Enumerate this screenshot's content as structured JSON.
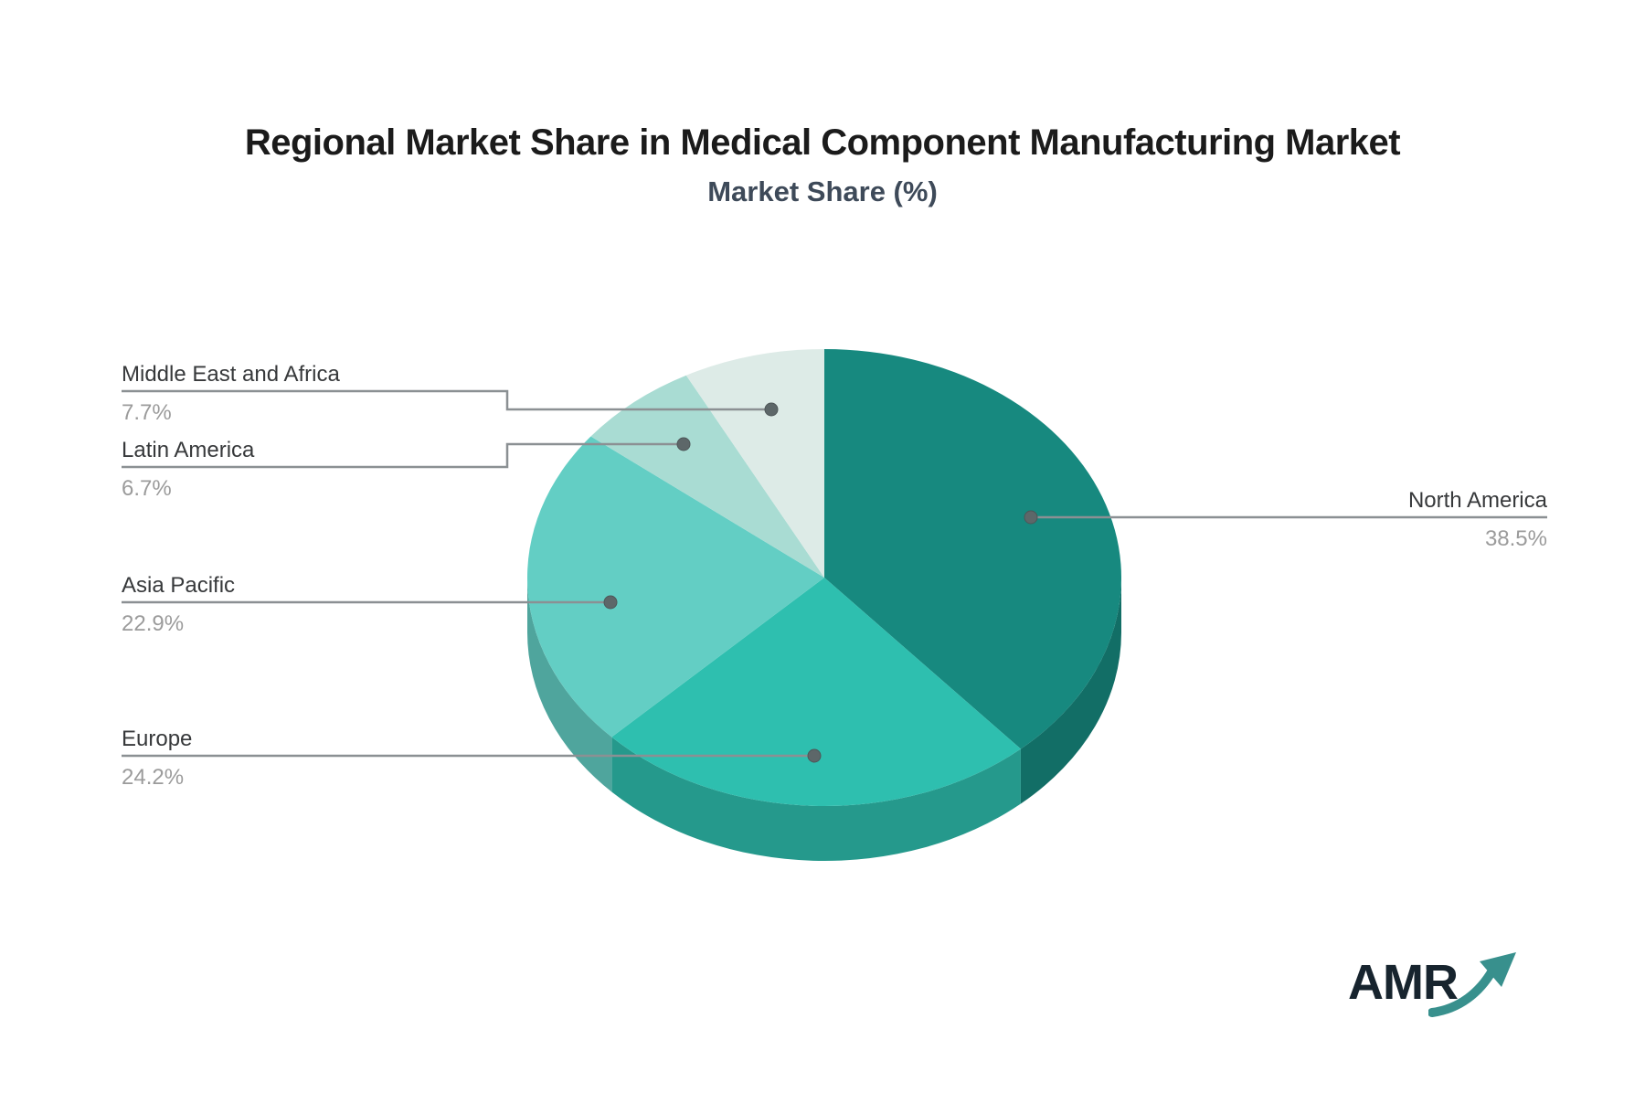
{
  "title": "Regional Market Share in Medical Component Manufacturing Market",
  "subtitle": "Market Share (%)",
  "logo": {
    "text": "AMR",
    "arrow_color": "#38908d",
    "text_color": "#17242e"
  },
  "palette": {
    "callout_line": "#8b9093",
    "callout_dot": "#5d6769",
    "label_text": "#37393b",
    "pct_text": "#9b9b9b"
  },
  "chart_data": {
    "type": "pie",
    "style": "3d",
    "title": "Regional Market Share in Medical Component Manufacturing Market",
    "subtitle": "Market Share (%)",
    "unit": "%",
    "start_angle_deg_clockwise_from_top": 0,
    "legend_position": "callout-labels",
    "slices": [
      {
        "label": "North America",
        "value": 38.5,
        "display": "38.5%",
        "color": "#17897f"
      },
      {
        "label": "Europe",
        "value": 24.2,
        "display": "24.2%",
        "color": "#2ebfaf"
      },
      {
        "label": "Asia Pacific",
        "value": 22.9,
        "display": "22.9%",
        "color": "#63cec4"
      },
      {
        "label": "Latin America",
        "value": 6.7,
        "display": "6.7%",
        "color": "#a9dcd3"
      },
      {
        "label": "Middle East and Africa",
        "value": 7.7,
        "display": "7.7%",
        "color": "#ddebe7"
      }
    ]
  }
}
